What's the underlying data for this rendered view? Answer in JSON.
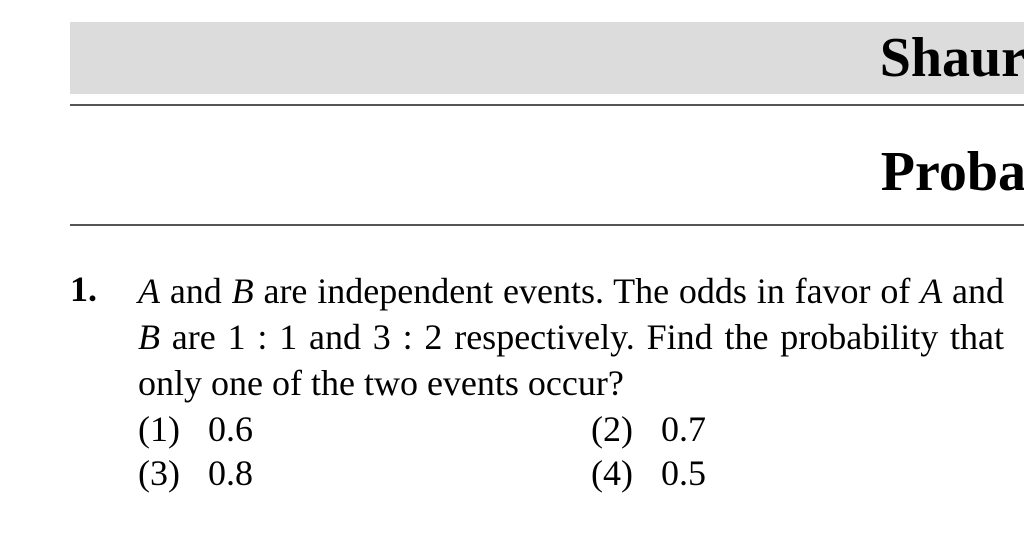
{
  "header": {
    "title": "Shaur",
    "subtitle": "Proba"
  },
  "question": {
    "number": "1.",
    "text_parts": {
      "p1": "A",
      "p2": " and ",
      "p3": "B",
      "p4": " are independent events. The odds in favor of ",
      "p5": "A",
      "p6": " and ",
      "p7": "B",
      "p8": " are 1 : 1 and 3 : 2 respectively. Find the probability that only one of the two events occur?"
    },
    "options": [
      {
        "num": "(1)",
        "val": "0.6"
      },
      {
        "num": "(2)",
        "val": "0.7"
      },
      {
        "num": "(3)",
        "val": "0.8"
      },
      {
        "num": "(4)",
        "val": "0.5"
      }
    ]
  },
  "colors": {
    "header_bg": "#dcdcdc",
    "text": "#000000",
    "rule": "#555555",
    "page_bg": "#ffffff"
  }
}
